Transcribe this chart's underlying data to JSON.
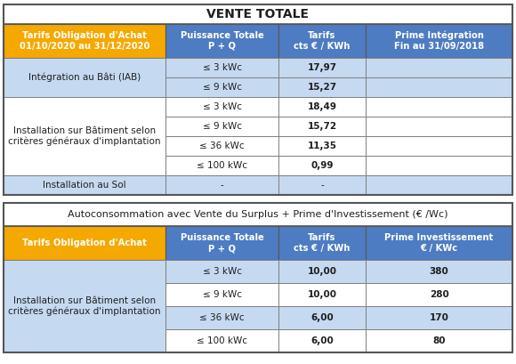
{
  "fig_w": 5.8,
  "fig_h": 4.09,
  "dpi": 100,
  "color_yellow": "#F5A800",
  "color_blue": "#4E7CC2",
  "color_light_blue": "#C5D9F1",
  "color_white": "#FFFFFF",
  "color_border": "#7F7F7F",
  "color_dark": "#1F1F1F",
  "t1_title": "VENTE TOTALE",
  "t1_hdr": [
    "Tarifs Obligation d'Achat\n01/10/2020 au 31/12/2020",
    "Puissance Totale\nP + Q",
    "Tarifs\ncts € / KWh",
    "Prime Intégration\nFin au 31/09/2018"
  ],
  "t2_title": "Autoconsommation avec Vente du Surplus + Prime d'Investissement (€ /Wc)",
  "t2_hdr": [
    "Tarifs Obligation d'Achat",
    "Puissance Totale\nP + Q",
    "Tarifs\ncts € / KWh",
    "Prime Investissement\n€ / KWc"
  ]
}
